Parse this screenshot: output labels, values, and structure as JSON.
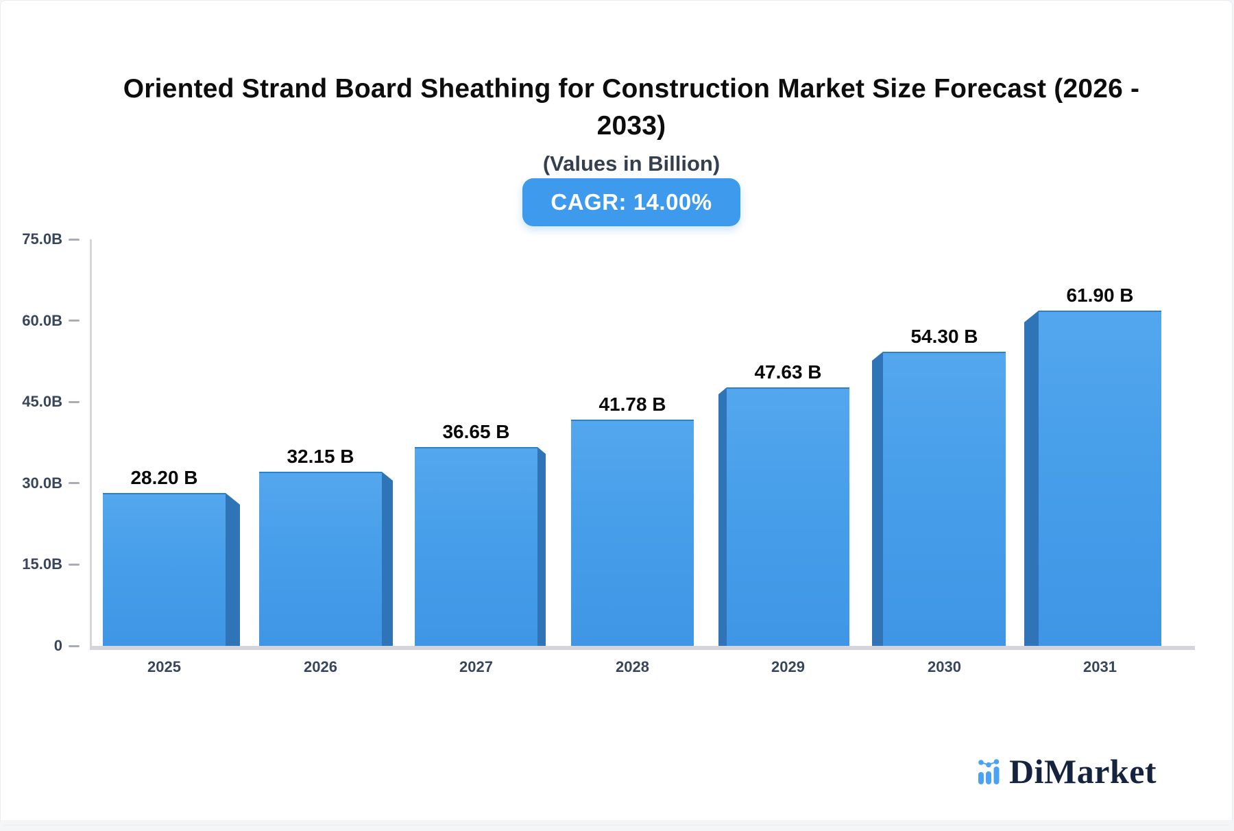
{
  "header": {
    "title_line1": "Oriented Strand Board Sheathing for Construction Market Size Forecast (2026 -",
    "title_line2": "2033)",
    "subtitle": "(Values in Billion)",
    "cagr_badge": "CAGR: 14.00%"
  },
  "chart_data": {
    "type": "bar",
    "title": "Oriented Strand Board Sheathing for Construction Market Size Forecast (2026 - 2033)",
    "subtitle": "(Values in Billion)",
    "cagr_label": "CAGR: 14.00%",
    "cagr_percent": 14.0,
    "unit": "Billion",
    "categories": [
      "2025",
      "2026",
      "2027",
      "2028",
      "2029",
      "2030",
      "2031"
    ],
    "values": [
      28.2,
      32.15,
      36.65,
      41.78,
      47.63,
      54.3,
      61.9
    ],
    "bar_labels": [
      "28.20 B",
      "32.15 B",
      "36.65 B",
      "41.78 B",
      "47.63 B",
      "54.30 B",
      "61.90 B"
    ],
    "xlabel": "",
    "ylabel": "",
    "ylim": [
      0,
      75
    ],
    "ytick_interval": 15,
    "ytick_labels": [
      "75.0B",
      "60.0B",
      "45.0B",
      "30.0B",
      "15.0B",
      "0"
    ],
    "grid": false,
    "legend": false,
    "effect": "3d-perspective-center",
    "colors": {
      "bar_face_top": "#53a7ee",
      "bar_face_bottom": "#3f96e6",
      "bar_top_edge": "#2f7fc6",
      "bar_side": "#2e74b7",
      "badge_blue": "#3d9aec",
      "axis_line": "#d5d6db",
      "tick": "#a8adb8",
      "axis_text": "#39455c",
      "value_text": "#0a0a0a"
    }
  },
  "footer": {
    "brand": "DiMarket"
  }
}
